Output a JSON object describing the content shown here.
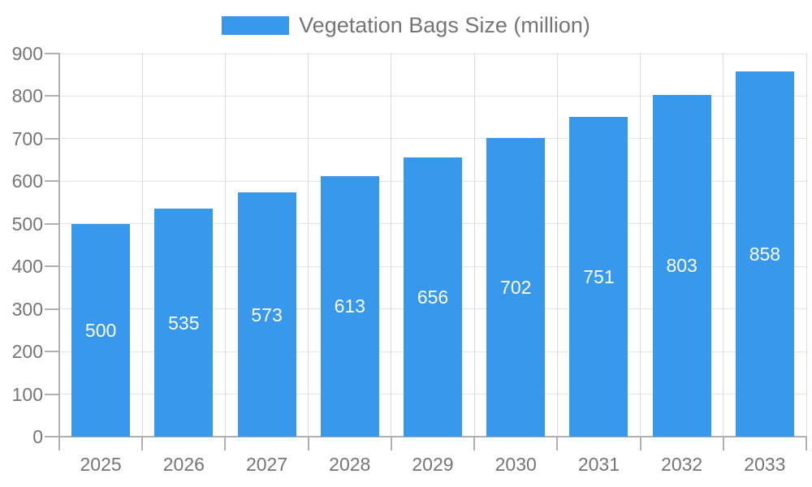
{
  "legend": {
    "label": "Vegetation Bags Size (million)"
  },
  "colors": {
    "bar": "#3899EC",
    "bar_label": "#ffffff",
    "grid_horizontal": "#e4e4e4",
    "grid_vertical": "#d9d9d9",
    "axis": "#b0b0b0",
    "label_text": "#757575"
  },
  "chart_data": {
    "type": "bar",
    "title": "",
    "xlabel": "",
    "ylabel": "",
    "categories": [
      "2025",
      "2026",
      "2027",
      "2028",
      "2029",
      "2030",
      "2031",
      "2032",
      "2033"
    ],
    "values": [
      500,
      535,
      573,
      613,
      656,
      702,
      751,
      803,
      858
    ],
    "series_name": "Vegetation Bags Size (million)",
    "bar_value_labels": [
      "500",
      "535",
      "573",
      "613",
      "656",
      "702",
      "751",
      "803",
      "858"
    ],
    "y_ticks": [
      "0",
      "100",
      "200",
      "300",
      "400",
      "500",
      "600",
      "700",
      "800",
      "900"
    ],
    "ylim": [
      0,
      900
    ],
    "ytick_step": 100,
    "grid": true,
    "legend_position": "top-center",
    "value_label_position": "centered-inside-bar"
  }
}
